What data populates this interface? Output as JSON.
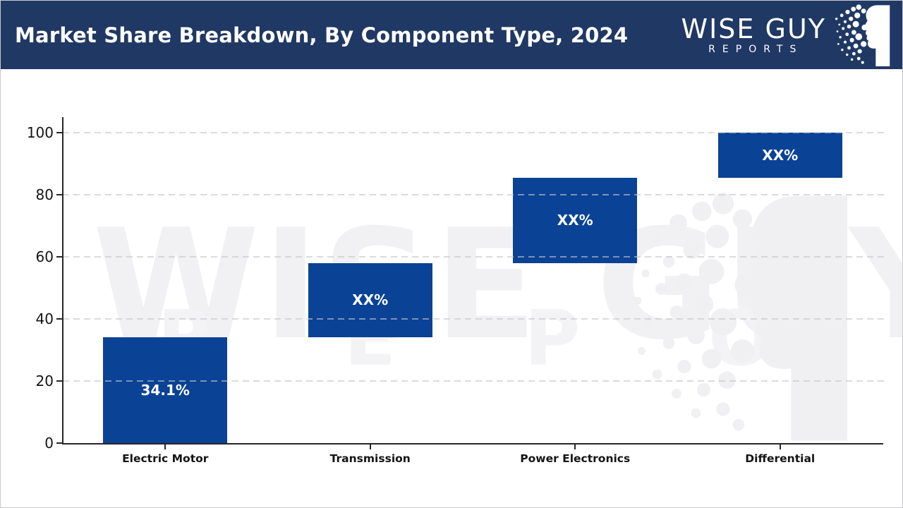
{
  "header": {
    "title": "Market Share Breakdown, By Component Type, 2024",
    "bg_color": "#203864",
    "logo": {
      "line1": "WISE GUY",
      "line2": "REPORTS"
    }
  },
  "chart_data": {
    "type": "bar",
    "subtype": "waterfall",
    "title": "Market Share Breakdown, By Component Type, 2024",
    "categories": [
      "Electric Motor",
      "Transmission",
      "Power Electronics",
      "Differential"
    ],
    "segments": [
      {
        "category": "Electric Motor",
        "start": 0,
        "end": 34.1,
        "label": "34.1%"
      },
      {
        "category": "Transmission",
        "start": 34.1,
        "end": 58.0,
        "label": "XX%"
      },
      {
        "category": "Power Electronics",
        "start": 58.0,
        "end": 85.5,
        "label": "XX%"
      },
      {
        "category": "Differential",
        "start": 85.5,
        "end": 100,
        "label": "XX%"
      }
    ],
    "y_ticks": [
      0,
      20,
      40,
      60,
      80,
      100
    ],
    "ylim": [
      0,
      105
    ],
    "xlabel": "",
    "ylabel": "",
    "grid": "horizontal-dashed",
    "legend": "none",
    "bar_color": "#0a4296",
    "bar_label_color": "#ffffff",
    "axis_color": "#262626",
    "watermark": {
      "line1": "WISE GUY",
      "line2": "R E P O R T S"
    }
  }
}
